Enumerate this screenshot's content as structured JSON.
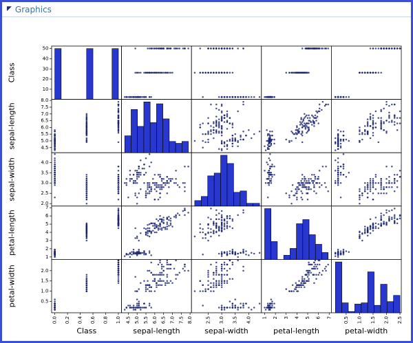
{
  "header": {
    "title": "Graphics",
    "collapse_icon": "◤"
  },
  "colors": {
    "frame": "#3b4ed8",
    "title_text": "#2779ae",
    "header_rule": "#c9d4ee",
    "icon": "#1b2a75",
    "hist_fill": "#2737cf",
    "hist_edge": "#000000",
    "point": "#1a2370",
    "cell_border": "#000000",
    "plot_bg": "#ffffff"
  },
  "chart_data": {
    "type": "scatter_matrix",
    "title": "",
    "legend": "none",
    "grid": "off",
    "description": "5x5 scatter-plot matrix of the iris dataset with histograms on the diagonal",
    "variables": [
      {
        "label": "Class",
        "min": -0.05,
        "max": 1.05,
        "xticks": [
          0,
          0.2,
          0.4,
          0.6,
          0.8,
          1
        ],
        "xtick_labels": [
          "0.0",
          "0.2",
          "0.4",
          "0.6",
          "0.8",
          "1.0"
        ],
        "yticks": [
          10,
          20,
          30,
          40,
          50
        ],
        "ytick_labels": [
          "10",
          "20",
          "30",
          "40",
          "50"
        ],
        "hist": {
          "start": 0,
          "binw": 0.1,
          "counts": [
            50,
            0,
            0,
            0,
            0,
            50,
            0,
            0,
            0,
            50
          ]
        }
      },
      {
        "label": "sepal-length",
        "min": 4.12,
        "max": 8.08,
        "xticks": [
          4.5,
          5,
          5.5,
          6,
          6.5,
          7,
          7.5,
          8
        ],
        "xtick_labels": [
          "4.5",
          "5.0",
          "5.5",
          "6.0",
          "6.5",
          "7.0",
          "7.5",
          "8.0"
        ],
        "yticks": [
          4.5,
          5,
          5.5,
          6,
          6.5,
          7,
          7.5,
          8
        ],
        "ytick_labels": [
          "4.5",
          "5.0",
          "5.5",
          "6.0",
          "6.5",
          "7.0",
          "7.5",
          "8.0"
        ],
        "hist": {
          "start": 4.3,
          "binw": 0.36,
          "counts": [
            9,
            23,
            14,
            27,
            16,
            26,
            18,
            6,
            5,
            6
          ]
        }
      },
      {
        "label": "sepal-width",
        "min": 1.88,
        "max": 4.47,
        "xticks": [
          2.5,
          3,
          3.5,
          4
        ],
        "xtick_labels": [
          "2.5",
          "3.0",
          "3.5",
          "4.0"
        ],
        "yticks": [
          2,
          2.5,
          3,
          3.5,
          4
        ],
        "ytick_labels": [
          "2.0",
          "2.5",
          "3.0",
          "3.5",
          "4.0"
        ],
        "hist": {
          "start": 2,
          "binw": 0.24,
          "counts": [
            4,
            7,
            22,
            24,
            37,
            31,
            10,
            11,
            2,
            2
          ]
        }
      },
      {
        "label": "petal-length",
        "min": 0.7,
        "max": 7.2,
        "xticks": [
          1,
          2,
          3,
          4,
          5,
          6,
          7
        ],
        "xtick_labels": [
          "1",
          "2",
          "3",
          "4",
          "5",
          "6",
          "7"
        ],
        "yticks": [
          1,
          2,
          3,
          4,
          5,
          6,
          7
        ],
        "ytick_labels": [
          "1",
          "2",
          "3",
          "4",
          "5",
          "6",
          "7"
        ],
        "hist": {
          "start": 1,
          "binw": 0.59,
          "counts": [
            37,
            13,
            0,
            3,
            8,
            26,
            29,
            18,
            11,
            5
          ]
        }
      },
      {
        "label": "petal-width",
        "min": -0.05,
        "max": 2.55,
        "xticks": [
          0.5,
          1,
          1.5,
          2,
          2.5
        ],
        "xtick_labels": [
          "0.5",
          "1.0",
          "1.5",
          "2.0",
          "2.5"
        ],
        "yticks": [
          0.5,
          1,
          1.5,
          2
        ],
        "ytick_labels": [
          "0.5",
          "1.0",
          "1.5",
          "2.0"
        ],
        "hist": {
          "start": 0.1,
          "binw": 0.24,
          "counts": [
            41,
            8,
            1,
            7,
            8,
            33,
            6,
            23,
            9,
            14
          ]
        }
      }
    ],
    "sample_columns": [
      "Class",
      "sepal-length",
      "sepal-width",
      "petal-length",
      "petal-width"
    ],
    "samples": [
      [
        0,
        5.1,
        3.5,
        1.4,
        0.2
      ],
      [
        0,
        4.9,
        3.0,
        1.4,
        0.2
      ],
      [
        0,
        4.7,
        3.2,
        1.3,
        0.2
      ],
      [
        0,
        4.6,
        3.1,
        1.5,
        0.2
      ],
      [
        0,
        5.0,
        3.6,
        1.4,
        0.2
      ],
      [
        0,
        5.4,
        3.9,
        1.7,
        0.4
      ],
      [
        0,
        4.6,
        3.4,
        1.4,
        0.3
      ],
      [
        0,
        5.0,
        3.4,
        1.5,
        0.2
      ],
      [
        0,
        4.4,
        2.9,
        1.4,
        0.2
      ],
      [
        0,
        4.9,
        3.1,
        1.5,
        0.1
      ],
      [
        0,
        5.4,
        3.7,
        1.5,
        0.2
      ],
      [
        0,
        4.8,
        3.4,
        1.6,
        0.2
      ],
      [
        0,
        4.8,
        3.0,
        1.4,
        0.1
      ],
      [
        0,
        4.3,
        3.0,
        1.1,
        0.1
      ],
      [
        0,
        5.8,
        4.0,
        1.2,
        0.2
      ],
      [
        0,
        5.7,
        4.4,
        1.5,
        0.4
      ],
      [
        0,
        5.4,
        3.9,
        1.3,
        0.4
      ],
      [
        0,
        5.1,
        3.5,
        1.4,
        0.3
      ],
      [
        0,
        5.7,
        3.8,
        1.7,
        0.3
      ],
      [
        0,
        5.1,
        3.8,
        1.5,
        0.3
      ],
      [
        0,
        5.4,
        3.4,
        1.7,
        0.2
      ],
      [
        0,
        5.1,
        3.7,
        1.5,
        0.4
      ],
      [
        0,
        4.6,
        3.6,
        1.0,
        0.2
      ],
      [
        0,
        5.1,
        3.3,
        1.7,
        0.5
      ],
      [
        0,
        4.8,
        3.4,
        1.9,
        0.2
      ],
      [
        0,
        5.0,
        3.0,
        1.6,
        0.2
      ],
      [
        0,
        5.0,
        3.4,
        1.6,
        0.4
      ],
      [
        0,
        5.2,
        3.5,
        1.5,
        0.2
      ],
      [
        0,
        5.2,
        3.4,
        1.4,
        0.2
      ],
      [
        0,
        4.7,
        3.2,
        1.6,
        0.2
      ],
      [
        0,
        4.8,
        3.1,
        1.6,
        0.2
      ],
      [
        0,
        5.4,
        3.4,
        1.5,
        0.4
      ],
      [
        0,
        5.2,
        4.1,
        1.5,
        0.1
      ],
      [
        0,
        5.5,
        4.2,
        1.4,
        0.2
      ],
      [
        0,
        4.9,
        3.1,
        1.5,
        0.2
      ],
      [
        0,
        5.0,
        3.2,
        1.2,
        0.2
      ],
      [
        0,
        5.5,
        3.5,
        1.3,
        0.2
      ],
      [
        0,
        4.9,
        3.6,
        1.4,
        0.1
      ],
      [
        0,
        4.4,
        3.0,
        1.3,
        0.2
      ],
      [
        0,
        5.1,
        3.4,
        1.5,
        0.2
      ],
      [
        0,
        5.0,
        3.5,
        1.3,
        0.3
      ],
      [
        0,
        4.5,
        2.3,
        1.3,
        0.3
      ],
      [
        0,
        4.4,
        3.2,
        1.3,
        0.2
      ],
      [
        0,
        5.0,
        3.5,
        1.6,
        0.6
      ],
      [
        0,
        5.1,
        3.8,
        1.9,
        0.4
      ],
      [
        0,
        4.8,
        3.0,
        1.4,
        0.3
      ],
      [
        0,
        5.1,
        3.8,
        1.6,
        0.2
      ],
      [
        0,
        4.6,
        3.2,
        1.4,
        0.2
      ],
      [
        0,
        5.3,
        3.7,
        1.5,
        0.2
      ],
      [
        0,
        5.0,
        3.3,
        1.4,
        0.2
      ],
      [
        0.5,
        7.0,
        3.2,
        4.7,
        1.4
      ],
      [
        0.5,
        6.4,
        3.2,
        4.5,
        1.5
      ],
      [
        0.5,
        6.9,
        3.1,
        4.9,
        1.5
      ],
      [
        0.5,
        5.5,
        2.3,
        4.0,
        1.3
      ],
      [
        0.5,
        6.5,
        2.8,
        4.6,
        1.5
      ],
      [
        0.5,
        5.7,
        2.8,
        4.5,
        1.3
      ],
      [
        0.5,
        6.3,
        3.3,
        4.7,
        1.6
      ],
      [
        0.5,
        4.9,
        2.4,
        3.3,
        1.0
      ],
      [
        0.5,
        6.6,
        2.9,
        4.6,
        1.3
      ],
      [
        0.5,
        5.2,
        2.7,
        3.9,
        1.4
      ],
      [
        0.5,
        5.0,
        2.0,
        3.5,
        1.0
      ],
      [
        0.5,
        5.9,
        3.0,
        4.2,
        1.5
      ],
      [
        0.5,
        6.0,
        2.2,
        4.0,
        1.0
      ],
      [
        0.5,
        6.1,
        2.9,
        4.7,
        1.4
      ],
      [
        0.5,
        5.6,
        2.9,
        3.6,
        1.3
      ],
      [
        0.5,
        6.7,
        3.1,
        4.4,
        1.4
      ],
      [
        0.5,
        5.6,
        3.0,
        4.5,
        1.5
      ],
      [
        0.5,
        5.8,
        2.7,
        4.1,
        1.0
      ],
      [
        0.5,
        6.2,
        2.2,
        4.5,
        1.5
      ],
      [
        0.5,
        5.6,
        2.5,
        3.9,
        1.1
      ],
      [
        0.5,
        5.9,
        3.2,
        4.8,
        1.8
      ],
      [
        0.5,
        6.1,
        2.8,
        4.0,
        1.3
      ],
      [
        0.5,
        6.3,
        2.5,
        4.9,
        1.5
      ],
      [
        0.5,
        6.1,
        2.8,
        4.7,
        1.2
      ],
      [
        0.5,
        6.4,
        2.9,
        4.3,
        1.3
      ],
      [
        0.5,
        6.6,
        3.0,
        4.4,
        1.4
      ],
      [
        0.5,
        6.8,
        2.8,
        4.8,
        1.4
      ],
      [
        0.5,
        6.7,
        3.0,
        5.0,
        1.7
      ],
      [
        0.5,
        6.0,
        2.9,
        4.5,
        1.5
      ],
      [
        0.5,
        5.7,
        2.6,
        3.5,
        1.0
      ],
      [
        0.5,
        5.5,
        2.4,
        3.8,
        1.1
      ],
      [
        0.5,
        5.5,
        2.4,
        3.7,
        1.0
      ],
      [
        0.5,
        5.8,
        2.7,
        3.9,
        1.2
      ],
      [
        0.5,
        6.0,
        2.7,
        5.1,
        1.6
      ],
      [
        0.5,
        5.4,
        3.0,
        4.5,
        1.5
      ],
      [
        0.5,
        6.0,
        3.4,
        4.5,
        1.6
      ],
      [
        0.5,
        6.7,
        3.1,
        4.7,
        1.5
      ],
      [
        0.5,
        6.3,
        2.3,
        4.4,
        1.3
      ],
      [
        0.5,
        5.6,
        3.0,
        4.1,
        1.3
      ],
      [
        0.5,
        5.5,
        2.5,
        4.0,
        1.3
      ],
      [
        0.5,
        5.5,
        2.6,
        4.4,
        1.2
      ],
      [
        0.5,
        6.1,
        3.0,
        4.6,
        1.4
      ],
      [
        0.5,
        5.8,
        2.6,
        4.0,
        1.2
      ],
      [
        0.5,
        5.0,
        2.3,
        3.3,
        1.0
      ],
      [
        0.5,
        5.6,
        2.7,
        4.2,
        1.3
      ],
      [
        0.5,
        5.7,
        3.0,
        4.2,
        1.2
      ],
      [
        0.5,
        5.7,
        2.9,
        4.2,
        1.3
      ],
      [
        0.5,
        6.2,
        2.9,
        4.3,
        1.3
      ],
      [
        0.5,
        5.1,
        2.5,
        3.0,
        1.1
      ],
      [
        0.5,
        5.7,
        2.8,
        4.1,
        1.3
      ],
      [
        1,
        6.3,
        3.3,
        6.0,
        2.5
      ],
      [
        1,
        5.8,
        2.7,
        5.1,
        1.9
      ],
      [
        1,
        7.1,
        3.0,
        5.9,
        2.1
      ],
      [
        1,
        6.3,
        2.9,
        5.6,
        1.8
      ],
      [
        1,
        6.5,
        3.0,
        5.8,
        2.2
      ],
      [
        1,
        7.6,
        3.0,
        6.6,
        2.1
      ],
      [
        1,
        4.9,
        2.5,
        4.5,
        1.7
      ],
      [
        1,
        7.3,
        2.9,
        6.3,
        1.8
      ],
      [
        1,
        6.7,
        2.5,
        5.8,
        1.8
      ],
      [
        1,
        7.2,
        3.6,
        6.1,
        2.5
      ],
      [
        1,
        6.5,
        3.2,
        5.1,
        2.0
      ],
      [
        1,
        6.4,
        2.7,
        5.3,
        1.9
      ],
      [
        1,
        6.8,
        3.0,
        5.5,
        2.1
      ],
      [
        1,
        5.7,
        2.5,
        5.0,
        2.0
      ],
      [
        1,
        5.8,
        2.8,
        5.1,
        2.4
      ],
      [
        1,
        6.4,
        3.2,
        5.3,
        2.3
      ],
      [
        1,
        6.5,
        3.0,
        5.5,
        1.8
      ],
      [
        1,
        7.7,
        3.8,
        6.7,
        2.2
      ],
      [
        1,
        7.7,
        2.6,
        6.9,
        2.3
      ],
      [
        1,
        6.0,
        2.2,
        5.0,
        1.5
      ],
      [
        1,
        6.9,
        3.2,
        5.7,
        2.3
      ],
      [
        1,
        5.6,
        2.8,
        4.9,
        2.0
      ],
      [
        1,
        7.7,
        2.8,
        6.7,
        2.0
      ],
      [
        1,
        6.3,
        2.7,
        4.9,
        1.8
      ],
      [
        1,
        6.7,
        3.3,
        5.7,
        2.1
      ],
      [
        1,
        7.2,
        3.2,
        6.0,
        1.8
      ],
      [
        1,
        6.2,
        2.8,
        4.8,
        1.8
      ],
      [
        1,
        6.1,
        3.0,
        4.9,
        1.8
      ],
      [
        1,
        6.4,
        2.8,
        5.6,
        2.1
      ],
      [
        1,
        7.2,
        3.0,
        5.8,
        1.6
      ],
      [
        1,
        7.4,
        2.8,
        6.1,
        1.9
      ],
      [
        1,
        7.9,
        3.8,
        6.4,
        2.0
      ],
      [
        1,
        6.4,
        2.8,
        5.6,
        2.2
      ],
      [
        1,
        6.3,
        2.8,
        5.1,
        1.5
      ],
      [
        1,
        6.1,
        2.6,
        5.6,
        1.4
      ],
      [
        1,
        7.7,
        3.0,
        6.1,
        2.3
      ],
      [
        1,
        6.3,
        3.4,
        5.6,
        2.4
      ],
      [
        1,
        6.4,
        3.1,
        5.5,
        1.8
      ],
      [
        1,
        6.0,
        3.0,
        4.8,
        1.8
      ],
      [
        1,
        6.9,
        3.1,
        5.4,
        2.1
      ],
      [
        1,
        6.7,
        3.1,
        5.6,
        2.4
      ],
      [
        1,
        6.9,
        3.1,
        5.1,
        2.3
      ],
      [
        1,
        5.8,
        2.7,
        5.1,
        1.9
      ],
      [
        1,
        6.8,
        3.2,
        5.9,
        2.3
      ],
      [
        1,
        6.7,
        3.3,
        5.7,
        2.5
      ],
      [
        1,
        6.7,
        3.0,
        5.2,
        2.3
      ],
      [
        1,
        6.3,
        2.5,
        5.0,
        1.9
      ],
      [
        1,
        6.5,
        3.0,
        5.2,
        2.0
      ],
      [
        1,
        6.2,
        3.4,
        5.4,
        2.3
      ],
      [
        1,
        5.9,
        3.0,
        5.1,
        1.8
      ]
    ]
  }
}
